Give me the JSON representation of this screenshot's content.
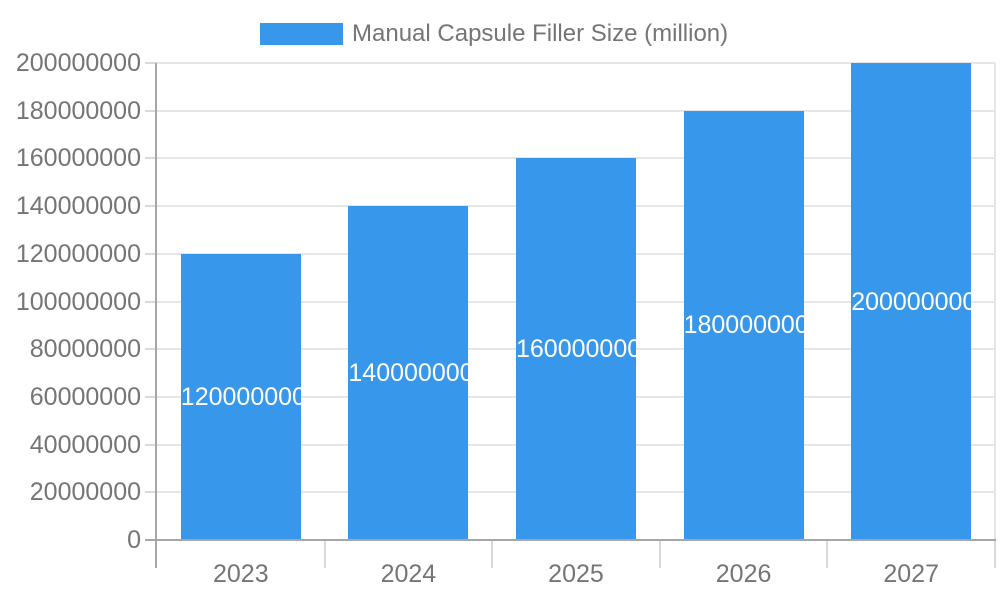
{
  "legend": {
    "label": "Manual Capsule Filler Size (million)"
  },
  "chart_data": {
    "type": "bar",
    "title": "Manual Capsule Filler Size (million)",
    "categories": [
      "2023",
      "2024",
      "2025",
      "2026",
      "2027"
    ],
    "values": [
      120000000,
      140000000,
      160000000,
      180000000,
      200000000
    ],
    "bar_labels": [
      "120000000",
      "140000000",
      "160000000",
      "180000000",
      "200000000"
    ],
    "y_ticks": [
      0,
      20000000,
      40000000,
      60000000,
      80000000,
      100000000,
      120000000,
      140000000,
      160000000,
      180000000,
      200000000
    ],
    "y_tick_labels": [
      "0",
      "20000000",
      "40000000",
      "60000000",
      "80000000",
      "100000000",
      "120000000",
      "140000000",
      "160000000",
      "180000000",
      "200000000"
    ],
    "xlabel": "",
    "ylabel": "",
    "ylim": [
      0,
      200000000
    ],
    "grid": true,
    "legend_position": "top",
    "colors": {
      "bar": "#3797eb",
      "bar_label_text": "#ffffff",
      "axis_text": "#757575",
      "gridline": "#e6e6e6",
      "axis_line": "#a6a6a6",
      "tick_line": "#d9d9d9",
      "background": "#ffffff"
    }
  }
}
